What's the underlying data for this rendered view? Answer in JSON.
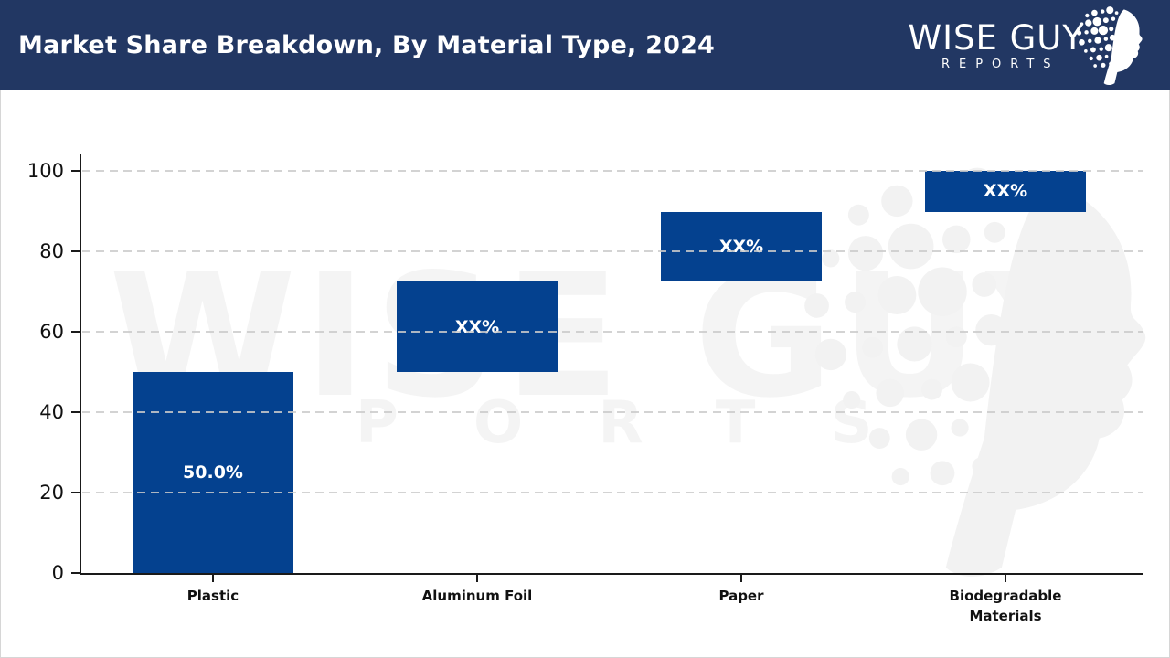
{
  "header": {
    "title": "Market Share Breakdown, By Material Type, 2024",
    "logo": {
      "line1": "WISE GUY",
      "line2": "REPORTS"
    }
  },
  "watermark": {
    "line1": "WISE GUY",
    "line2": "PORTS"
  },
  "colors": {
    "header_bg": "#223763",
    "bar_blue": "#04418f",
    "bar_label_text": "#ffffff",
    "axis": "#1a1a1a",
    "grid": "#cbcbcb",
    "watermark_gray": "#f2f2f2"
  },
  "chart_data": {
    "type": "bar",
    "variant": "waterfall",
    "title": "Market Share Breakdown, By Material Type, 2024",
    "categories": [
      "Plastic",
      "Aluminum Foil",
      "Paper",
      "Biodegradable Materials"
    ],
    "bars": [
      {
        "category": "Plastic",
        "start": 0,
        "end": 50.0,
        "label": "50.0%"
      },
      {
        "category": "Aluminum Foil",
        "start": 50.0,
        "end": 72.5,
        "label": "XX%"
      },
      {
        "category": "Paper",
        "start": 72.5,
        "end": 89.8,
        "label": "XX%"
      },
      {
        "category": "Biodegradable Materials",
        "start": 89.8,
        "end": 100.0,
        "label": "XX%"
      }
    ],
    "xlabel": "",
    "ylabel": "",
    "ylim": [
      0,
      100
    ],
    "yticks": [
      0,
      20,
      40,
      60,
      80,
      100
    ],
    "grid": "horizontal-dashed",
    "legend": "none"
  }
}
